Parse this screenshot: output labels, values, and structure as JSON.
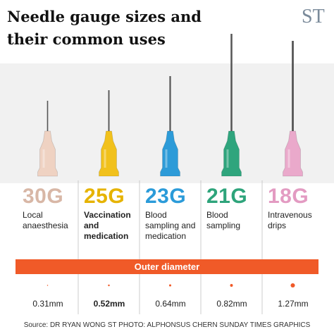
{
  "header": {
    "title": "Needle gauge sizes and their common uses",
    "logo": "ST"
  },
  "needles": [
    {
      "gauge": "30G",
      "use": "Local anaesthesia",
      "diameter": "0.31mm",
      "color": "#efd2c2",
      "label_color": "#d8b7a6"
    },
    {
      "gauge": "25G",
      "use": "Vaccination and medication",
      "diameter": "0.52mm",
      "color": "#f1c11c",
      "label_color": "#e6b300"
    },
    {
      "gauge": "23G",
      "use": "Blood sampling and medication",
      "diameter": "0.64mm",
      "color": "#2d9bd8",
      "label_color": "#2b9bd9"
    },
    {
      "gauge": "21G",
      "use": "Blood sampling",
      "diameter": "0.82mm",
      "color": "#2fa57d",
      "label_color": "#2ea47b"
    },
    {
      "gauge": "18G",
      "use": "Intravenous drips",
      "diameter": "1.27mm",
      "color": "#eaa9cb",
      "label_color": "#e39bc2"
    }
  ],
  "axis_label": "Outer diameter",
  "source": "Source: DR RYAN WONG   ST PHOTO: ALPHONSUS CHERN   SUNDAY TIMES GRAPHICS"
}
